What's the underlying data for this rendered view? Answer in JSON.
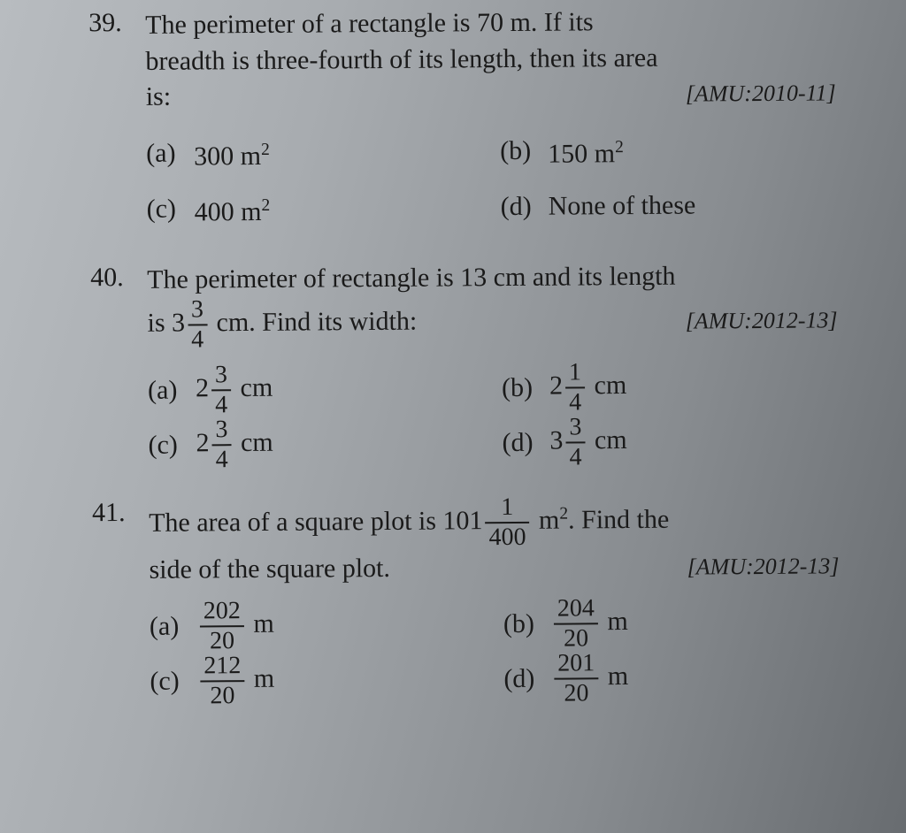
{
  "questions": [
    {
      "number": "39.",
      "stem_lines": [
        "The perimeter of a rectangle is 70 m. If its",
        "breadth is three-fourth of its length, then its area",
        "is:"
      ],
      "source": "[AMU:2010-11]",
      "options": {
        "a": {
          "label": "(a)",
          "text_html": "300 m<sup>2</sup>"
        },
        "b": {
          "label": "(b)",
          "text_html": "150 m<sup>2</sup>"
        },
        "c": {
          "label": "(c)",
          "text_html": "400 m<sup>2</sup>"
        },
        "d": {
          "label": "(d)",
          "text_html": "None of these"
        }
      }
    },
    {
      "number": "40.",
      "stem_prefix": "The perimeter of rectangle is 13 cm and its length",
      "stem_is_prefix": "is ",
      "stem_mixed_whole": "3",
      "stem_frac_num": "3",
      "stem_frac_den": "4",
      "stem_suffix": " cm. Find its width:",
      "source": "[AMU:2012-13]",
      "options": {
        "a": {
          "label": "(a)",
          "whole": "2",
          "num": "3",
          "den": "4",
          "unit": " cm"
        },
        "b": {
          "label": "(b)",
          "whole": "2",
          "num": "1",
          "den": "4",
          "unit": " cm"
        },
        "c": {
          "label": "(c)",
          "whole": "2",
          "num": "3",
          "den": "4",
          "unit": " cm"
        },
        "d": {
          "label": "(d)",
          "whole": "3",
          "num": "3",
          "den": "4",
          "unit": " cm"
        }
      }
    },
    {
      "number": "41.",
      "stem_prefix": "The area of a square plot is ",
      "stem_mixed_whole": "101",
      "stem_frac_num": "1",
      "stem_frac_den": "400",
      "stem_mid": " m",
      "stem_sup": "2",
      "stem_suffix_after": ". Find the",
      "stem_line2": "side of the square plot.",
      "source": "[AMU:2012-13]",
      "options": {
        "a": {
          "label": "(a)",
          "num": "202",
          "den": "20",
          "unit": " m"
        },
        "b": {
          "label": "(b)",
          "num": "204",
          "den": "20",
          "unit": " m"
        },
        "c": {
          "label": "(c)",
          "num": "212",
          "den": "20",
          "unit": " m"
        },
        "d": {
          "label": "(d)",
          "num": "201",
          "den": "20",
          "unit": " m"
        }
      }
    }
  ]
}
